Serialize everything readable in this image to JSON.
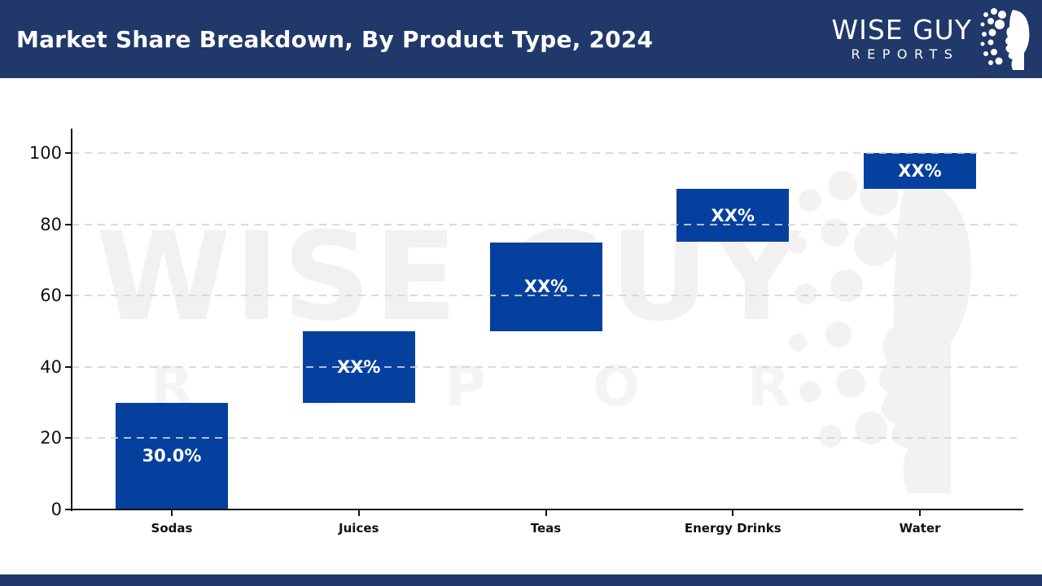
{
  "header": {
    "title": "Market Share Breakdown, By Product Type, 2024",
    "logo": {
      "line1": "WISE GUY",
      "line2": "REPORTS"
    }
  },
  "watermark": {
    "line1": "WISE GUY",
    "line2": "R E P O R T S"
  },
  "colors": {
    "header_bg": "#20386a",
    "footer_bg": "#20386a",
    "bar": "#05409e",
    "bar_label": "#ffffff",
    "axis": "#111111",
    "gridline": "#d4d4d4",
    "watermark": "#f1f1f1"
  },
  "chart_data": {
    "type": "bar",
    "variant": "waterfall",
    "title": "Market Share Breakdown, By Product Type, 2024",
    "categories": [
      "Sodas",
      "Juices",
      "Teas",
      "Energy Drinks",
      "Water"
    ],
    "segments": {
      "starts": [
        0,
        30,
        50,
        75,
        90
      ],
      "ends": [
        30,
        50,
        75,
        90,
        100
      ],
      "values": [
        30,
        20,
        25,
        15,
        10
      ]
    },
    "bar_labels": [
      "30.0%",
      "XX%",
      "XX%",
      "XX%",
      "XX%"
    ],
    "yticks": [
      0,
      20,
      40,
      60,
      80,
      100
    ],
    "ylim": [
      0,
      106
    ],
    "xlabel": "",
    "ylabel": "",
    "grid": "dashed-horizontal",
    "legend": "none"
  }
}
